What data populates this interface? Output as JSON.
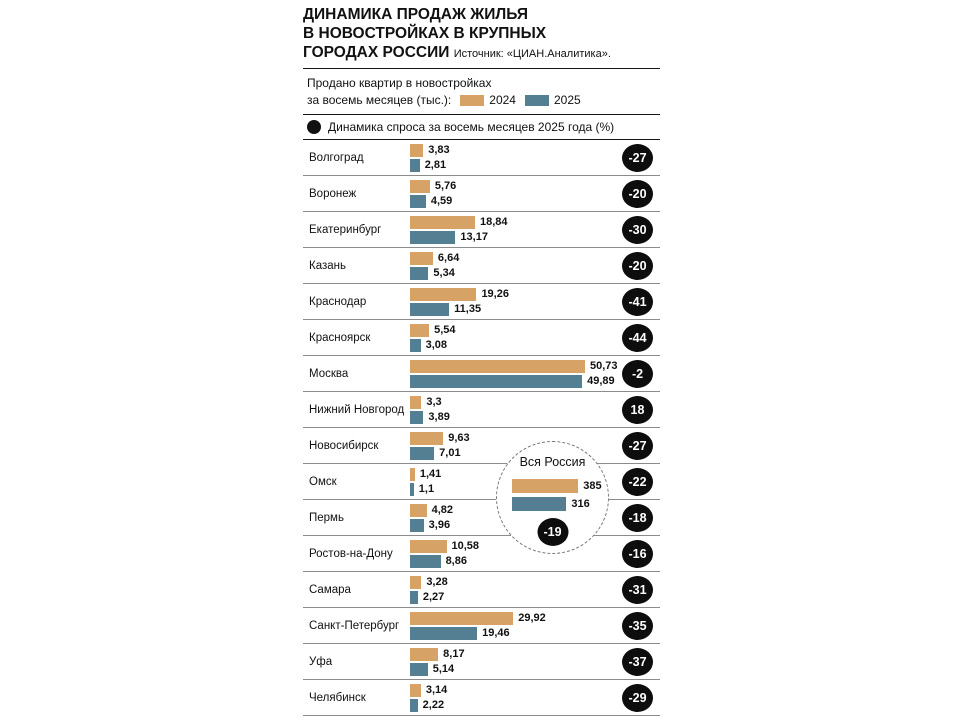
{
  "header": {
    "title_line1": "ДИНАМИКА ПРОДАЖ ЖИЛЬЯ",
    "title_line2": "В НОВОСТРОЙКАХ В КРУПНЫХ",
    "title_line3": "ГОРОДАХ РОССИИ",
    "source": "Источник: «ЦИАН.Аналитика»."
  },
  "legend": {
    "bars_label_line1": "Продано квартир в новостройках",
    "bars_label_line2": "за восемь месяцев (тыс.):",
    "dynamics_label": "Динамика спроса за восемь месяцев 2025 года (%)"
  },
  "chart_data": {
    "type": "bar",
    "orientation": "horizontal",
    "title": "Динамика продаж жилья в новостройках в крупных городах России",
    "source": "ЦИАН.Аналитика",
    "unit": "тыс. квартир, продано за восемь месяцев",
    "categories": [
      "Волгоград",
      "Воронеж",
      "Екатеринбург",
      "Казань",
      "Краснодар",
      "Красноярск",
      "Москва",
      "Нижний Новгород",
      "Новосибирск",
      "Омск",
      "Пермь",
      "Ростов-на-Дону",
      "Самара",
      "Санкт-Петербург",
      "Уфа",
      "Челябинск"
    ],
    "series": [
      {
        "name": "2024",
        "color": "#D7A266",
        "values": [
          3.83,
          5.76,
          18.84,
          6.64,
          19.26,
          5.54,
          50.73,
          3.3,
          9.63,
          1.41,
          4.82,
          10.58,
          3.28,
          29.92,
          8.17,
          3.14
        ]
      },
      {
        "name": "2025",
        "color": "#547E92",
        "values": [
          2.81,
          4.59,
          13.17,
          5.34,
          11.35,
          3.08,
          49.89,
          3.89,
          7.01,
          1.1,
          3.96,
          8.86,
          2.27,
          19.46,
          5.14,
          2.22
        ]
      }
    ],
    "dynamics_percent": [
      -27,
      -20,
      -30,
      -20,
      -41,
      -44,
      -2,
      18,
      -27,
      -22,
      -18,
      -16,
      -31,
      -35,
      -37,
      -29
    ],
    "inset": {
      "label": "Вся Россия",
      "v2024": 385,
      "v2025": 316,
      "label2024": "385",
      "label2025": "316",
      "dynamics": "-19"
    }
  }
}
